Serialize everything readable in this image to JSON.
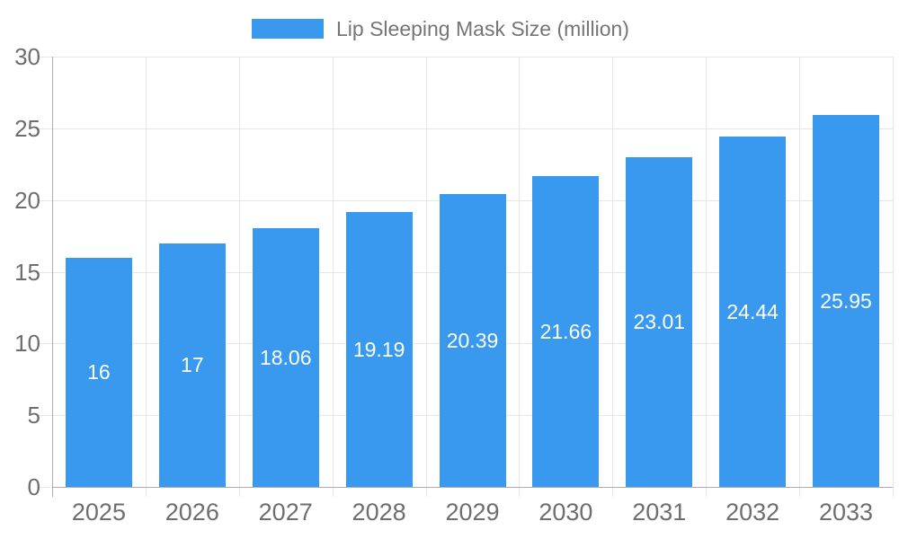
{
  "chart_data": {
    "type": "bar",
    "legend": {
      "label": "Lip Sleeping Mask Size (million)",
      "position": "top"
    },
    "categories": [
      "2025",
      "2026",
      "2027",
      "2028",
      "2029",
      "2030",
      "2031",
      "2032",
      "2033"
    ],
    "series": [
      {
        "name": "Lip Sleeping Mask Size (million)",
        "values": [
          16,
          17,
          18.06,
          19.19,
          20.39,
          21.66,
          23.01,
          24.44,
          25.95
        ]
      }
    ],
    "value_labels": [
      "16",
      "17",
      "18.06",
      "19.19",
      "20.39",
      "21.66",
      "23.01",
      "24.44",
      "25.95"
    ],
    "value_label_position": "inside-center",
    "xlabel": "",
    "ylabel": "",
    "ylim": [
      0,
      30
    ],
    "y_ticks": [
      0,
      5,
      10,
      15,
      20,
      25,
      30
    ],
    "grid": true,
    "colors": {
      "bar": "#3899EF",
      "gridline": "#E6E6E6",
      "axis_line": "#ADADAD",
      "axis_label": "#6E6E6E",
      "legend_text": "#757575",
      "bar_label_text": "#FFFFFF",
      "background": "#FFFFFF"
    }
  }
}
